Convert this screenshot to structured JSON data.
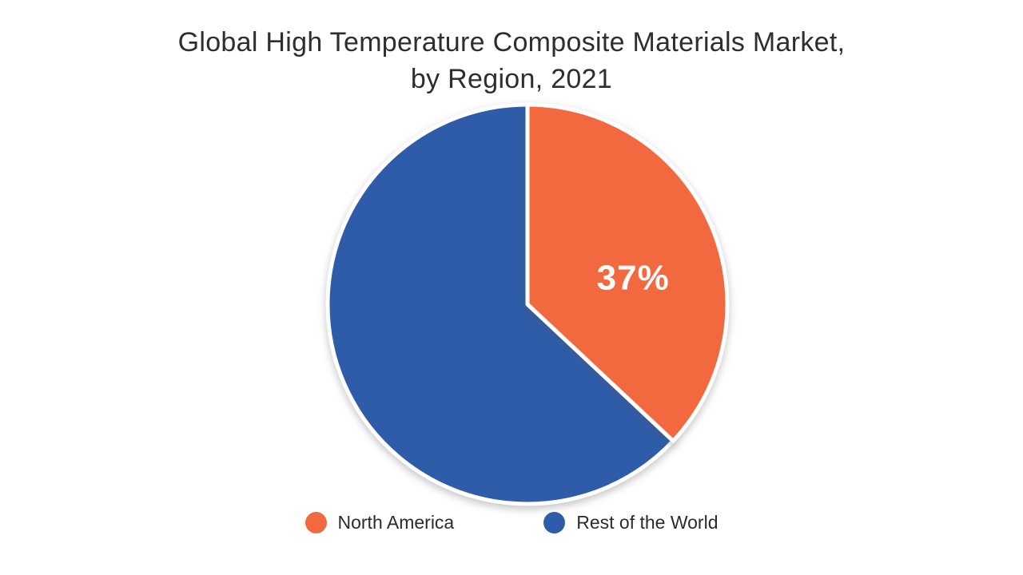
{
  "header": {
    "title_lines": [
      "Global High Temperature Composite Materials Market,",
      "by Region, 2021"
    ]
  },
  "chart_data": {
    "type": "pie",
    "title": "Global High Temperature Composite Materials Market, by Region, 2021",
    "categories": [
      "North America",
      "Rest of the World"
    ],
    "values": [
      37,
      63
    ],
    "unit": "percent",
    "colors": [
      "#F2693F",
      "#2E5CA9"
    ],
    "slice_labels": [
      "37%",
      ""
    ],
    "slice_label_color": "#FFFFFF",
    "slice_border_color": "#FFFFFF",
    "start_angle_deg": 0,
    "direction": "clockwise",
    "legend_position": "bottom",
    "label_position": {
      "angle_frac": 0.57,
      "radius_frac": 0.545
    }
  },
  "legend": {
    "items": [
      {
        "label": "North America",
        "color": "#F2693F"
      },
      {
        "label": "Rest of the World",
        "color": "#2E5CA9"
      }
    ]
  }
}
